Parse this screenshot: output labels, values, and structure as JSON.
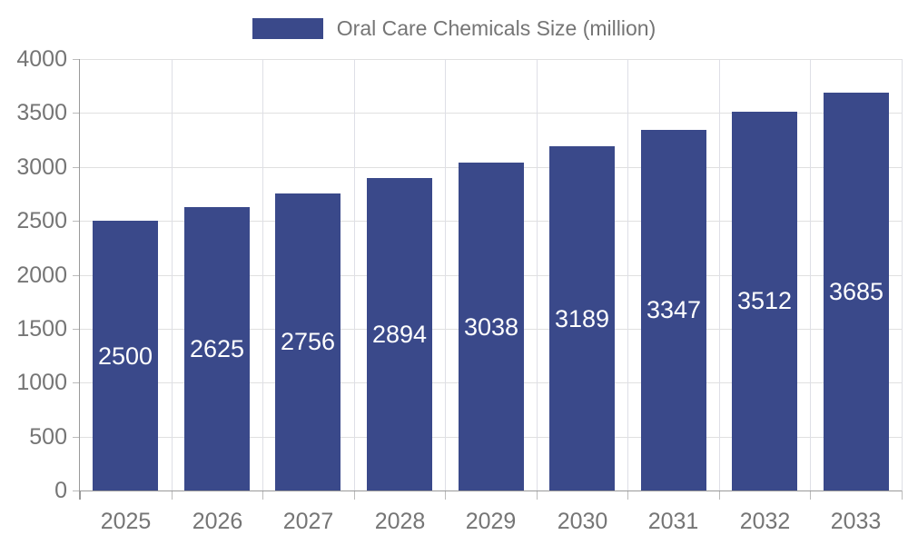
{
  "legend": {
    "label": "Oral Care Chemicals Size (million)"
  },
  "colors": {
    "bar": "#3a498a",
    "grid_h": "#e0e0e0",
    "grid_v": "#dedfe6",
    "axis": "#999999",
    "tick": "#bbbbbb",
    "axis_text": "#757575",
    "bar_label_text": "#ffffff"
  },
  "chart_data": {
    "type": "bar",
    "title": "",
    "series": [
      {
        "name": "Oral Care Chemicals Size (million)",
        "values": [
          2500,
          2625,
          2756,
          2894,
          3038,
          3189,
          3347,
          3512,
          3685
        ]
      }
    ],
    "categories": [
      "2025",
      "2026",
      "2027",
      "2028",
      "2029",
      "2030",
      "2031",
      "2032",
      "2033"
    ],
    "xlabel": "",
    "ylabel": "",
    "ylim": [
      0,
      4000
    ],
    "yticks": [
      0,
      500,
      1000,
      1500,
      2000,
      2500,
      3000,
      3500,
      4000
    ],
    "grid": true,
    "bar_labels_visible": true,
    "legend_position": "top-center",
    "legend_entries": [
      "Oral Care Chemicals Size (million)"
    ]
  }
}
